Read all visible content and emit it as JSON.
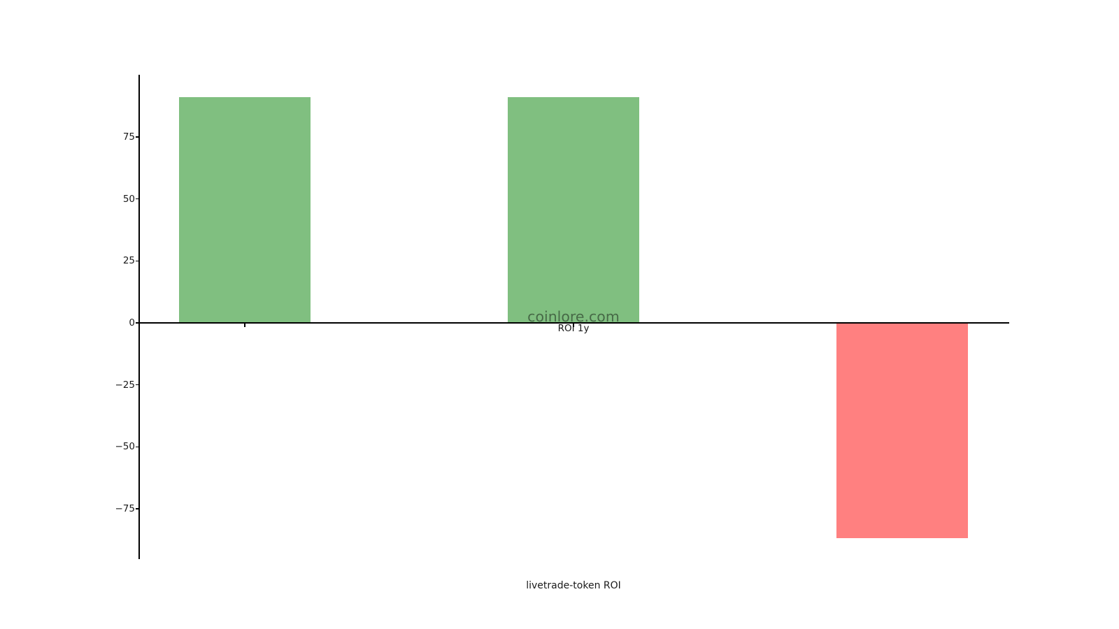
{
  "chart": {
    "watermark": "coinlore.com",
    "title": "livetrade-token ROI",
    "colors": {
      "positive_bar": "#80BF80",
      "negative_bar": "#FF8080",
      "axis": "#000000",
      "text": "#1a1a1a",
      "watermark": "rgba(0,0,0,0.45)"
    }
  },
  "chart_data": {
    "type": "bar",
    "title": "livetrade-token ROI",
    "watermark": "coinlore.com",
    "categories": [
      "",
      "ROI 1y",
      ""
    ],
    "values": [
      91,
      91,
      -86.5
    ],
    "bar_colors": [
      "#80BF80",
      "#80BF80",
      "#FF8080"
    ],
    "xticks": [
      {
        "label": "",
        "show_tick_mark": true
      },
      {
        "label": "ROI 1y",
        "show_tick_mark": true
      },
      {
        "label": "",
        "show_tick_mark": false
      }
    ],
    "yticks": [
      {
        "value": 75,
        "label": "75"
      },
      {
        "value": 50,
        "label": "50"
      },
      {
        "value": 25,
        "label": "25"
      },
      {
        "value": 0,
        "label": "0"
      },
      {
        "value": -25,
        "label": "−25"
      },
      {
        "value": -50,
        "label": "−50"
      },
      {
        "value": -75,
        "label": "−75"
      }
    ],
    "ylim": [
      -95,
      100
    ],
    "xlabel": "",
    "ylabel": "",
    "grid": false,
    "legend": false
  }
}
